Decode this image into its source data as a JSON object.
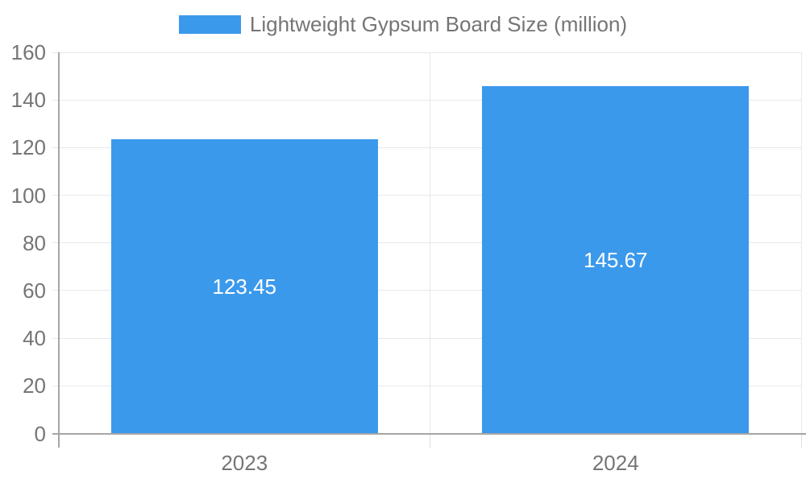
{
  "legend": {
    "label": "Lightweight Gypsum Board Size (million)",
    "swatch_color": "#3b99ec"
  },
  "chart_data": {
    "type": "bar",
    "title": "",
    "xlabel": "",
    "ylabel": "",
    "categories": [
      "2023",
      "2024"
    ],
    "series": [
      {
        "name": "Lightweight Gypsum Board Size (million)",
        "values": [
          123.45,
          145.67
        ]
      }
    ],
    "value_labels": [
      "123.45",
      "145.67"
    ],
    "ylim": [
      0,
      160
    ],
    "yticks": [
      0,
      20,
      40,
      60,
      80,
      100,
      120,
      140,
      160
    ],
    "ytick_labels": [
      "0",
      "20",
      "40",
      "60",
      "80",
      "100",
      "120",
      "140",
      "160"
    ],
    "grid": true,
    "legend_position": "top-center",
    "bar_color": "#3b99ec",
    "value_label_position": "inside-center"
  },
  "colors": {
    "bar": "#3b99ec",
    "axis_line": "#a6a6a6",
    "gridline": "#e8e8e8",
    "tick": "#dedede",
    "tick_text": "#757575",
    "value_text": "#ffffff",
    "background": "#ffffff"
  }
}
